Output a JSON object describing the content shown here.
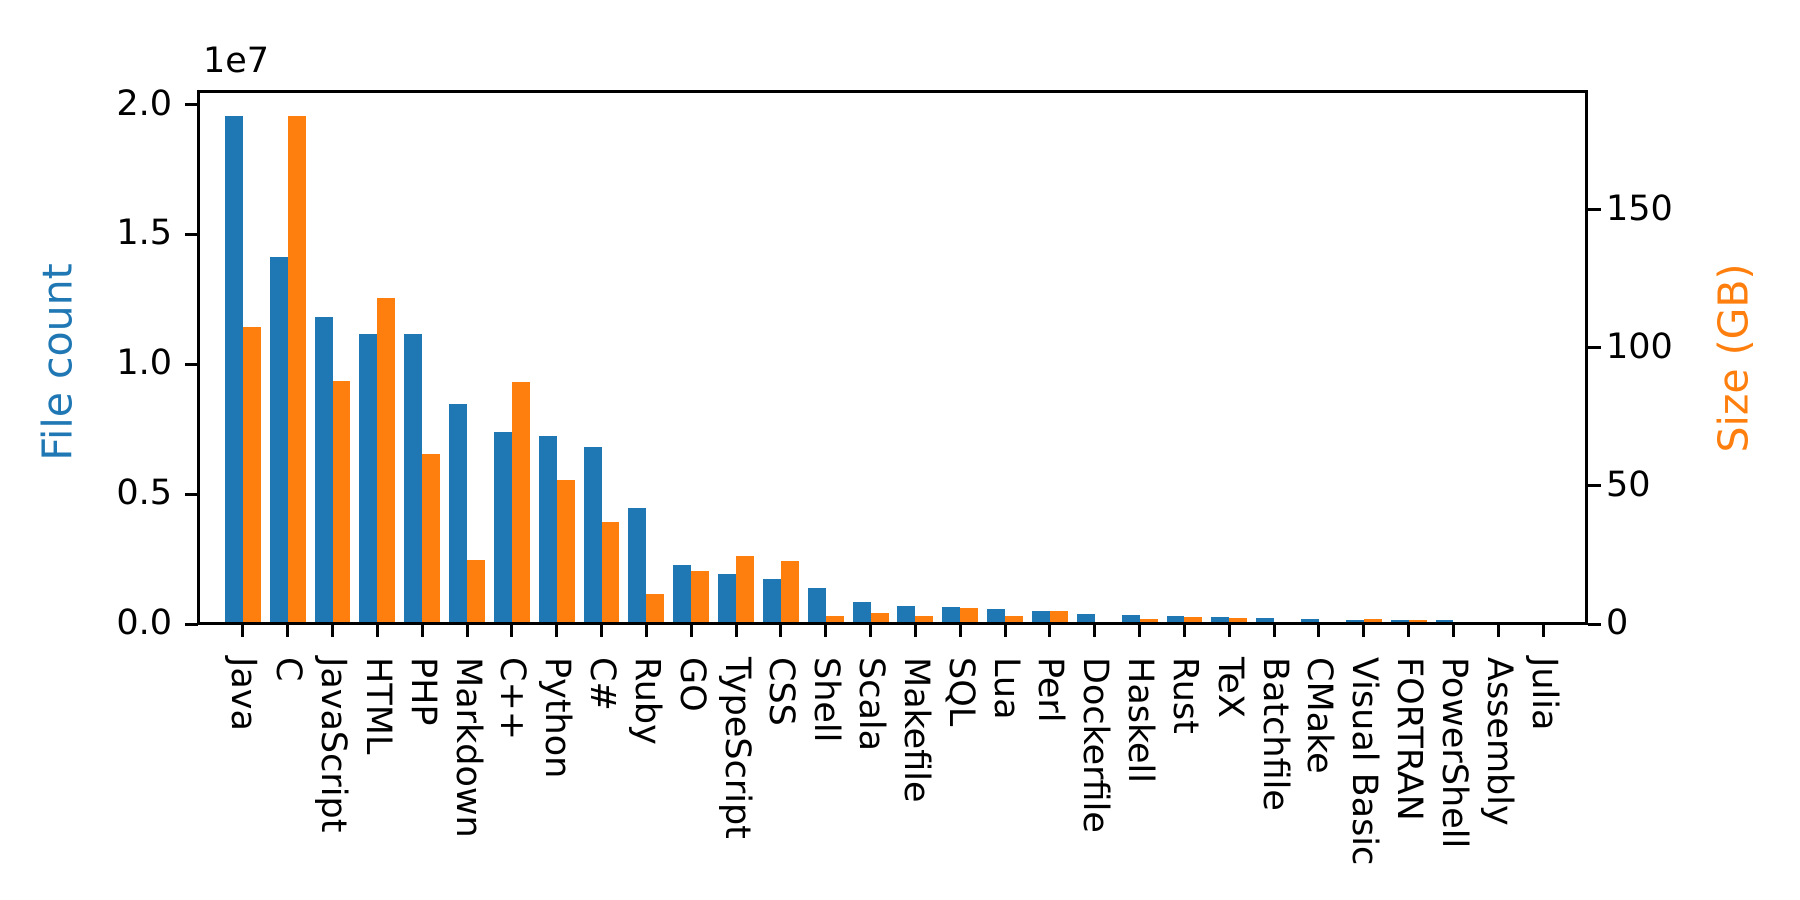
{
  "figure": {
    "background": "#ffffff",
    "axis_color": "#000000"
  },
  "chart_data": {
    "type": "bar",
    "title": "",
    "xlabel": "",
    "grid": false,
    "legend": "none",
    "bar_width_fraction": 0.4,
    "categories": [
      "Java",
      "C",
      "JavaScript",
      "HTML",
      "PHP",
      "Markdown",
      "C++",
      "Python",
      "C#",
      "Ruby",
      "GO",
      "TypeScript",
      "CSS",
      "Shell",
      "Scala",
      "Makefile",
      "SQL",
      "Lua",
      "Perl",
      "Dockerfile",
      "Haskell",
      "Rust",
      "TeX",
      "Batchfile",
      "CMake",
      "Visual Basic",
      "FORTRAN",
      "PowerShell",
      "Assembly",
      "Julia"
    ],
    "series": [
      {
        "name": "File count",
        "axis": "left",
        "color": "#1f77b4",
        "values": [
          19548190,
          14143113,
          11839883,
          11178557,
          11177610,
          8464626,
          7380520,
          7226626,
          6811652,
          4473331,
          2265436,
          1940406,
          1734406,
          1385648,
          835755,
          679430,
          656671,
          578554,
          497949,
          366505,
          340623,
          322431,
          251015,
          236945,
          175282,
          155652,
          142038,
          136846,
          82905,
          58317
        ]
      },
      {
        "name": "Size (GB)",
        "axis": "right",
        "color": "#ff7f0e",
        "values": [
          107.7,
          183.83,
          87.82,
          118.12,
          61.41,
          23.09,
          87.73,
          52.03,
          36.83,
          10.95,
          19.28,
          24.59,
          22.67,
          3.01,
          3.87,
          2.92,
          5.67,
          2.81,
          4.7,
          0.71,
          1.85,
          2.68,
          2.15,
          0.7,
          0.54,
          1.91,
          1.62,
          0.69,
          0.78,
          0.29
        ]
      }
    ],
    "left_axis": {
      "label": "File count",
      "label_color": "#1f77b4",
      "range": [
        0,
        20525600
      ],
      "ticks": [
        0,
        5000000,
        10000000,
        15000000,
        20000000
      ],
      "tick_labels": [
        "0.0",
        "0.5",
        "1.0",
        "1.5",
        "2.0"
      ],
      "offset_text": "1e7"
    },
    "right_axis": {
      "label": "Size (GB)",
      "label_color": "#ff7f0e",
      "range": [
        0,
        193.02
      ],
      "ticks": [
        0,
        50,
        100,
        150
      ],
      "tick_labels": [
        "0",
        "50",
        "100",
        "150"
      ]
    }
  }
}
